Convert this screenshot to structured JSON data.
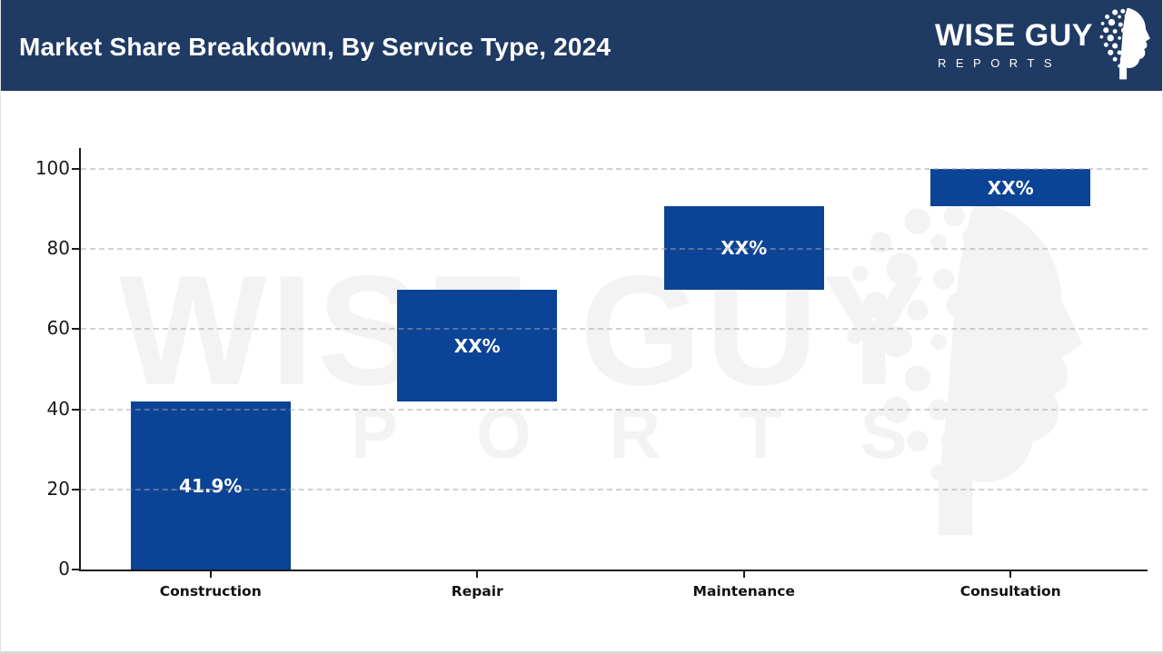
{
  "header": {
    "title": "Market Share Breakdown, By Service Type, 2024",
    "bg_color": "#1f3a63",
    "logo": {
      "line1": "WISE GUY",
      "line2": "REPORTS",
      "face_icon": "dotted-head-profile"
    }
  },
  "watermark": {
    "line1": "WISE GUY",
    "line2": "PORTS",
    "color": "#f3f3f3"
  },
  "chart_data": {
    "type": "bar",
    "variant": "waterfall",
    "title": "",
    "xlabel": "",
    "ylabel": "",
    "categories": [
      "Construction",
      "Repair",
      "Maintenance",
      "Consultation"
    ],
    "segments": [
      {
        "category": "Construction",
        "start": 0,
        "end": 41.9,
        "label": "41.9%"
      },
      {
        "category": "Repair",
        "start": 41.9,
        "end": 69.8,
        "label": "XX%"
      },
      {
        "category": "Maintenance",
        "start": 69.8,
        "end": 90.7,
        "label": "XX%"
      },
      {
        "category": "Consultation",
        "start": 90.7,
        "end": 100,
        "label": "XX%"
      }
    ],
    "yticks": [
      0,
      20,
      40,
      60,
      80,
      100
    ],
    "ylim": [
      0,
      105
    ],
    "grid": "horizontal-dashed",
    "grid_over_bars": true,
    "bar_color": "#0b4396",
    "value_label_color": "#ffffff",
    "axis_color": "#1a1a1a",
    "legend": "none"
  }
}
